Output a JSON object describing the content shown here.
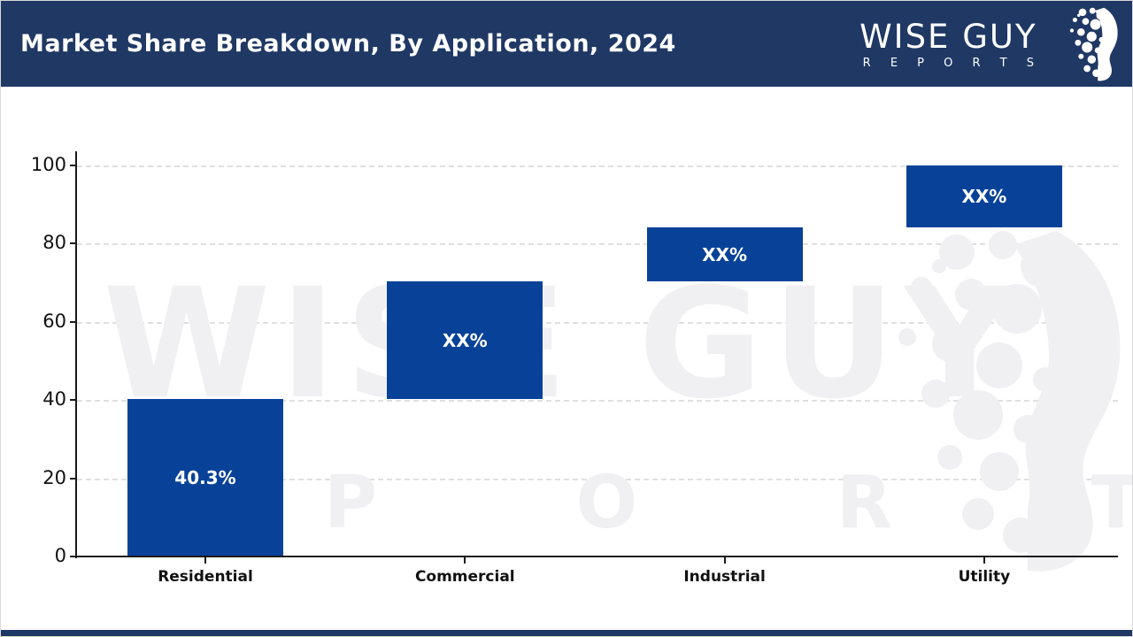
{
  "header": {
    "title": "Market Share Breakdown, By Application, 2024",
    "bg_color": "#1f3864",
    "logo": {
      "line1": "WISE GUY",
      "line2": "R E P O R T S",
      "face_icon": "profile-head-dots"
    }
  },
  "watermark": {
    "line1": "WISE GUY",
    "line2": "P O R T S",
    "face_icon": "profile-head-dots",
    "color": "#f0f0f2"
  },
  "chart_data": {
    "type": "bar",
    "subtype": "floating-waterfall",
    "title": "Market Share Breakdown, By Application, 2024",
    "categories": [
      "Residential",
      "Commercial",
      "Industrial",
      "Utility"
    ],
    "bar_ranges": [
      [
        0,
        40.3
      ],
      [
        40.3,
        70.3
      ],
      [
        70.3,
        84.1
      ],
      [
        84.1,
        100
      ]
    ],
    "bar_labels": [
      "40.3%",
      "XX%",
      "XX%",
      "XX%"
    ],
    "values_explained": "each bar floats from previous cumulative total; first bar value 40.3%, remaining values masked as XX%",
    "xlabel": "",
    "ylabel": "",
    "ylim": [
      0,
      100
    ],
    "yticks": [
      0,
      20,
      40,
      60,
      80,
      100
    ],
    "grid": "horizontal-dashed",
    "legend": "none",
    "bar_color": "#084298",
    "axis_color": "#1a1a1a"
  },
  "footer": {
    "stripe_color": "#1f3864"
  }
}
